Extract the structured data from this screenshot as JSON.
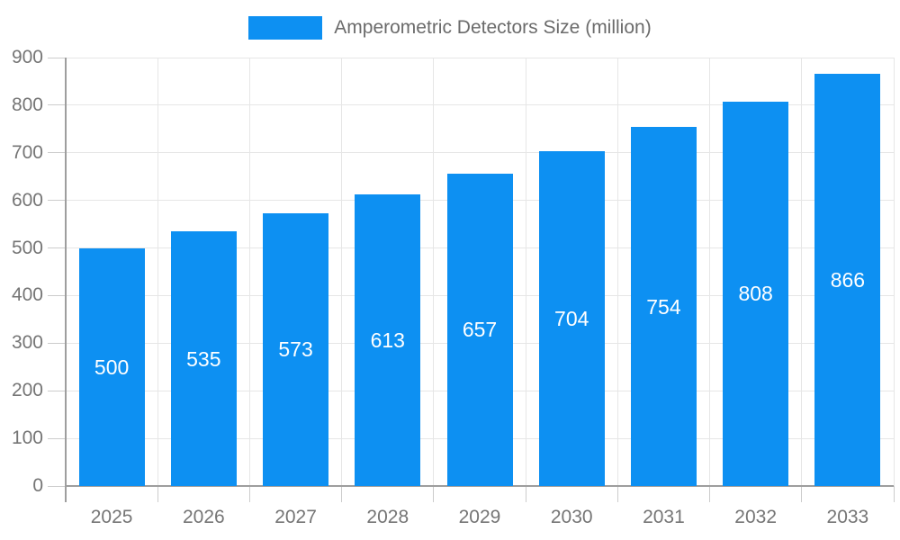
{
  "legend": {
    "label": "Amperometric Detectors Size (million)"
  },
  "chart_data": {
    "type": "bar",
    "categories": [
      "2025",
      "2026",
      "2027",
      "2028",
      "2029",
      "2030",
      "2031",
      "2032",
      "2033"
    ],
    "series": [
      {
        "name": "Amperometric Detectors Size (million)",
        "values": [
          500,
          535,
          573,
          613,
          657,
          704,
          754,
          808,
          866
        ]
      }
    ],
    "title": "",
    "xlabel": "",
    "ylabel": "",
    "ylim": [
      0,
      900
    ],
    "ytick_step": 100,
    "grid": true,
    "legend_position": "top",
    "bar_labels_inside": true,
    "colors": {
      "bar": "#0d90f2",
      "bar_label": "#ffffff",
      "axis_text": "#757575",
      "legend_text": "#6b6b6b",
      "gridline": "#e6e6e6",
      "axis_line": "#9e9e9e",
      "tick": "#cccccc",
      "background": "#ffffff"
    }
  }
}
